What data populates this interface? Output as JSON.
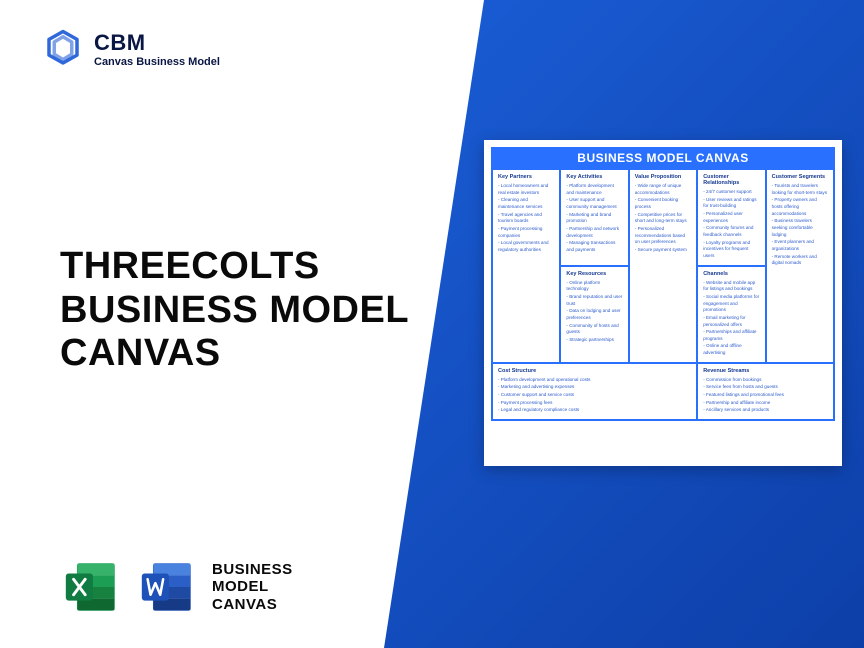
{
  "logo": {
    "brand": "CBM",
    "tag": "Canvas Business Model"
  },
  "title": {
    "line1": "THREECOLTS",
    "line2": "BUSINESS MODEL",
    "line3": "CANVAS"
  },
  "file_label": {
    "line1": "BUSINESS",
    "line2": "MODEL",
    "line3": "CANVAS"
  },
  "canvas": {
    "title": "BUSINESS MODEL CANVAS",
    "kp": {
      "head": "Key Partners",
      "items": [
        "- Local homeowners and real estate investors",
        "- Cleaning and maintenance services",
        "- Travel agencies and tourism boards",
        "- Payment processing companies",
        "- Local governments and regulatory authorities"
      ]
    },
    "ka": {
      "head": "Key Activities",
      "items": [
        "- Platform development and maintenance",
        "- User support and community management",
        "- Marketing and brand promotion",
        "- Partnership and network development",
        "- Managing transactions and payments"
      ]
    },
    "kr": {
      "head": "Key Resources",
      "items": [
        "- Online platform technology",
        "- Brand reputation and user trust",
        "- Data on lodging and user preferences",
        "- Community of hosts and guests",
        "- Strategic partnerships"
      ]
    },
    "vp": {
      "head": "Value Proposition",
      "items": [
        "- Wide range of unique accommodations",
        "- Convenient booking process",
        "- Competitive prices for short and long-term stays",
        "- Personalized recommendations based on user preferences",
        "- Secure payment system"
      ]
    },
    "cr": {
      "head": "Customer Relationships",
      "items": [
        "- 24/7 customer support",
        "- User reviews and ratings for trust-building",
        "- Personalized user experiences",
        "- Community forums and feedback channels",
        "- Loyalty programs and incentives for frequent users"
      ]
    },
    "ch": {
      "head": "Channels",
      "items": [
        "- Website and mobile app for listings and bookings",
        "- Social media platforms for engagement and promotions",
        "- Email marketing for personalized offers",
        "- Partnerships and affiliate programs",
        "- Online and offline advertising"
      ]
    },
    "cs": {
      "head": "Customer Segments",
      "items": [
        "- Tourists and travelers looking for short-term stays",
        "- Property owners and hosts offering accommodations",
        "- Business travelers seeking comfortable lodging",
        "- Event planners and organizations",
        "- Remote workers and digital nomads"
      ]
    },
    "cost": {
      "head": "Cost Structure",
      "items": [
        "- Platform development and operational costs",
        "- Marketing and advertising expenses",
        "- Customer support and service costs",
        "- Payment processing fees",
        "- Legal and regulatory compliance costs"
      ]
    },
    "rev": {
      "head": "Revenue Streams",
      "items": [
        "- Commission from bookings",
        "- Service fees from hosts and guests",
        "- Featured listings and promotional fees",
        "- Partnership and affiliate income",
        "- Ancillary services and products"
      ]
    }
  },
  "colors": {
    "brand_blue": "#1858d6",
    "title_color": "#0a0a0a",
    "canvas_accent": "#2970ff",
    "excel_green": "#1d9e55",
    "word_blue": "#2b5fc5"
  }
}
